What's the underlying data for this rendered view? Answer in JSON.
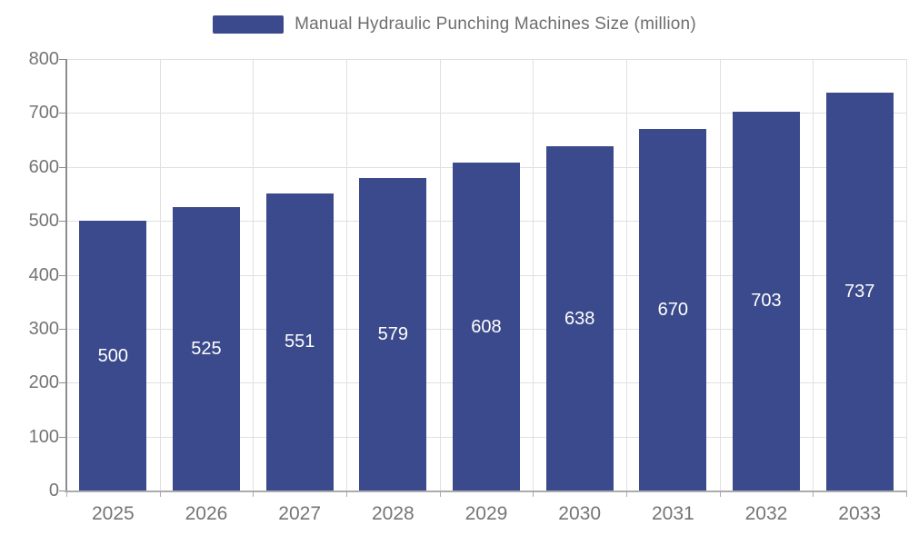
{
  "legend": {
    "label": "Manual Hydraulic Punching Machines Size (million)"
  },
  "colors": {
    "background": "#FFFFFF",
    "bar": "#3B4A8C",
    "legend_text": "#6E6E6E",
    "tick_text": "#757575",
    "grid": "#E0E0E0",
    "axis": "#8C8C8C",
    "axis_x": "#ABABAB",
    "value_label": "#FFFFFF"
  },
  "chart_data": {
    "type": "bar",
    "title": "Manual Hydraulic Punching Machines Size (million)",
    "categories": [
      "2025",
      "2026",
      "2027",
      "2028",
      "2029",
      "2030",
      "2031",
      "2032",
      "2033"
    ],
    "values": [
      500,
      525,
      551,
      579,
      608,
      638,
      670,
      703,
      737
    ],
    "xlabel": "",
    "ylabel": "",
    "ylim": [
      0,
      800
    ],
    "ytick_step": 100,
    "grid": true,
    "legend_position": "top",
    "bar_width_fraction": 0.72,
    "value_labels": "centered-inside-bars"
  }
}
